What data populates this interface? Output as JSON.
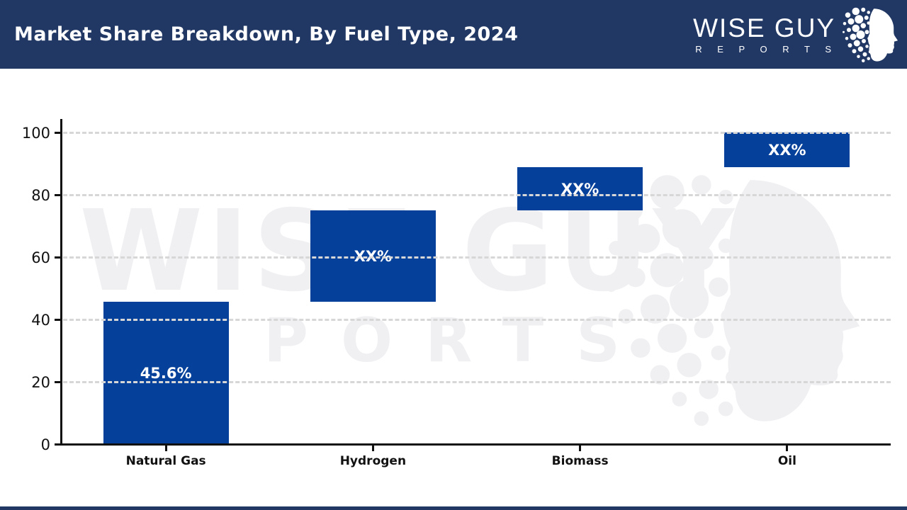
{
  "header": {
    "title": "Market Share Breakdown, By Fuel Type, 2024",
    "logo": {
      "line1": "WISE GUY",
      "line2": "R E P O R T S"
    }
  },
  "watermark": {
    "line1": "WISE GUY",
    "line2": "REPORTS"
  },
  "chart_data": {
    "type": "bar",
    "subtype": "waterfall",
    "title": "Market Share Breakdown, By Fuel Type, 2024",
    "categories": [
      "Natural Gas",
      "Hydrogen",
      "Biomass",
      "Oil"
    ],
    "segments": [
      {
        "category": "Natural Gas",
        "start": 0,
        "end": 45.6,
        "label": "45.6%"
      },
      {
        "category": "Hydrogen",
        "start": 45.6,
        "end": 75.0,
        "label": "XX%"
      },
      {
        "category": "Biomass",
        "start": 75.0,
        "end": 88.8,
        "label": "XX%"
      },
      {
        "category": "Oil",
        "start": 88.8,
        "end": 100.0,
        "label": "XX%"
      }
    ],
    "yticks": [
      0,
      20,
      40,
      60,
      80,
      100
    ],
    "ylim": [
      0,
      104
    ],
    "grid": true,
    "legend": false,
    "xlabel": "",
    "ylabel": ""
  },
  "colors": {
    "header_bg": "#213865",
    "bar": "#05409a",
    "grid": "#d7d7d7",
    "axis": "#111111",
    "watermark": "#f0f0f3",
    "title_text": "#ffffff",
    "bar_label_text": "#ffffff"
  }
}
